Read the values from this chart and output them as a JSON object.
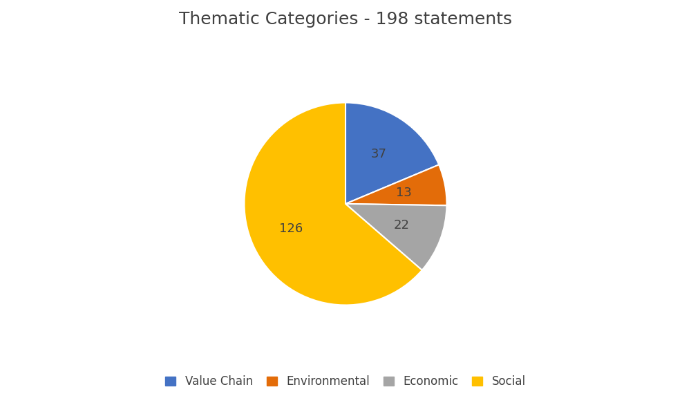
{
  "title": "Thematic Categories - 198 statements",
  "labels": [
    "Value Chain",
    "Environmental",
    "Economic",
    "Social"
  ],
  "values": [
    37,
    13,
    22,
    126
  ],
  "colors": [
    "#4472C4",
    "#E36C09",
    "#A5A5A5",
    "#FFC000"
  ],
  "title_fontsize": 18,
  "label_fontsize": 13,
  "legend_fontsize": 12,
  "background_color": "#FFFFFF",
  "startangle": 90
}
